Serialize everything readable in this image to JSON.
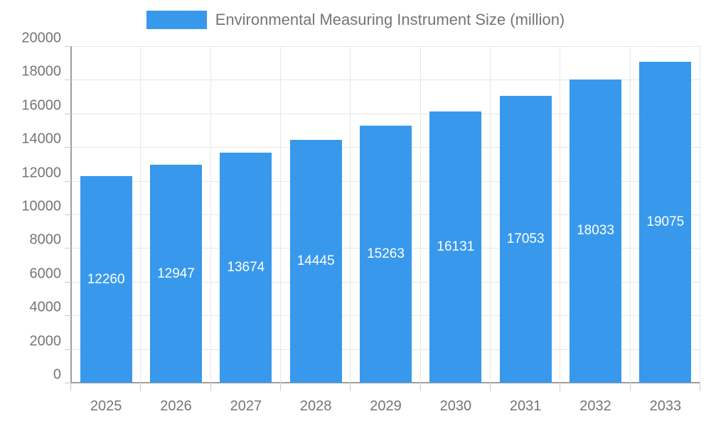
{
  "chart_data": {
    "type": "bar",
    "title": "Environmental Measuring Instrument Size (million)",
    "categories": [
      "2025",
      "2026",
      "2027",
      "2028",
      "2029",
      "2030",
      "2031",
      "2032",
      "2033"
    ],
    "values": [
      12260,
      12947,
      13674,
      14445,
      15263,
      16131,
      17053,
      18033,
      19075
    ],
    "xlabel": "",
    "ylabel": "",
    "ylim": [
      0,
      20000
    ],
    "ytick_step": 2000,
    "yticks": [
      0,
      2000,
      4000,
      6000,
      8000,
      10000,
      12000,
      14000,
      16000,
      18000,
      20000
    ],
    "grid": "on",
    "legend_position": "top-center",
    "colors": {
      "bar": "#3899ec",
      "bar_value_label": "#ffffff",
      "axis_text": "#757575",
      "legend_text": "#757575",
      "gridline": "#e6e6e6",
      "axis_line": "#9e9e9e",
      "tick_mark": "#c9c9c9",
      "background": "#ffffff"
    }
  }
}
